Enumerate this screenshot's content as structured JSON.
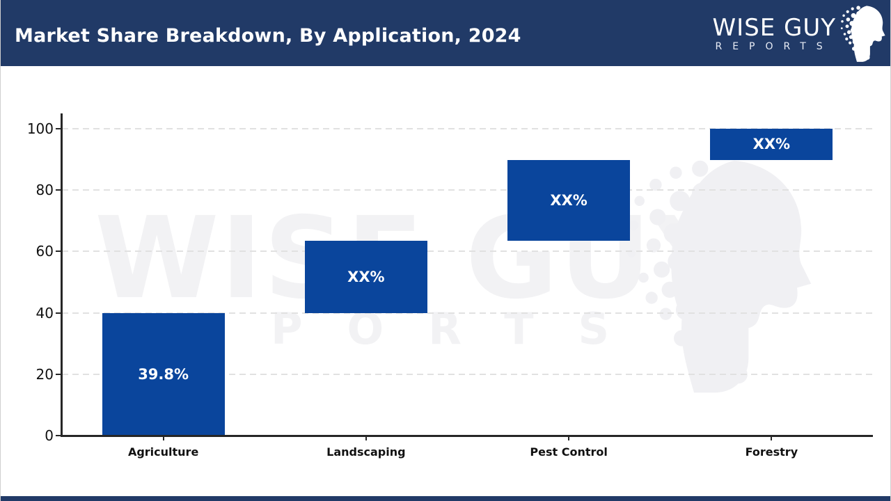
{
  "header": {
    "title": "Market Share Breakdown, By Application, 2024",
    "logo": {
      "line1": "WISE GUY",
      "line2": "REPORTS"
    }
  },
  "watermark": {
    "line1": "WISE GUY",
    "line2": "REPORTS"
  },
  "chart_data": {
    "type": "bar",
    "subtype": "floating-segment-breakdown",
    "title": "Market Share Breakdown, By Application, 2024",
    "categories": [
      "Agriculture",
      "Landscaping",
      "Pest Control",
      "Forestry"
    ],
    "segments": [
      {
        "category": "Agriculture",
        "start": 0,
        "end": 39.8,
        "label": "39.8%"
      },
      {
        "category": "Landscaping",
        "start": 39.8,
        "end": 63.4,
        "label": "XX%"
      },
      {
        "category": "Pest Control",
        "start": 63.4,
        "end": 89.9,
        "label": "XX%"
      },
      {
        "category": "Forestry",
        "start": 89.9,
        "end": 100,
        "label": "XX%"
      }
    ],
    "yticks": [
      0,
      20,
      40,
      60,
      80,
      100
    ],
    "ylim": [
      0,
      105
    ],
    "xlabel": "",
    "ylabel": "",
    "grid": "dashed-horizontal",
    "legend": "none",
    "bar_color": "#0a459c",
    "bar_value_label_color": "#ffffff",
    "axis_color": "#262626",
    "grid_color": "#e1e1e1"
  },
  "colors": {
    "header_bg": "#213a67",
    "footer_bg": "#213a67",
    "bar_blue": "#0a459c",
    "watermark_gray": "#f2f2f4"
  }
}
